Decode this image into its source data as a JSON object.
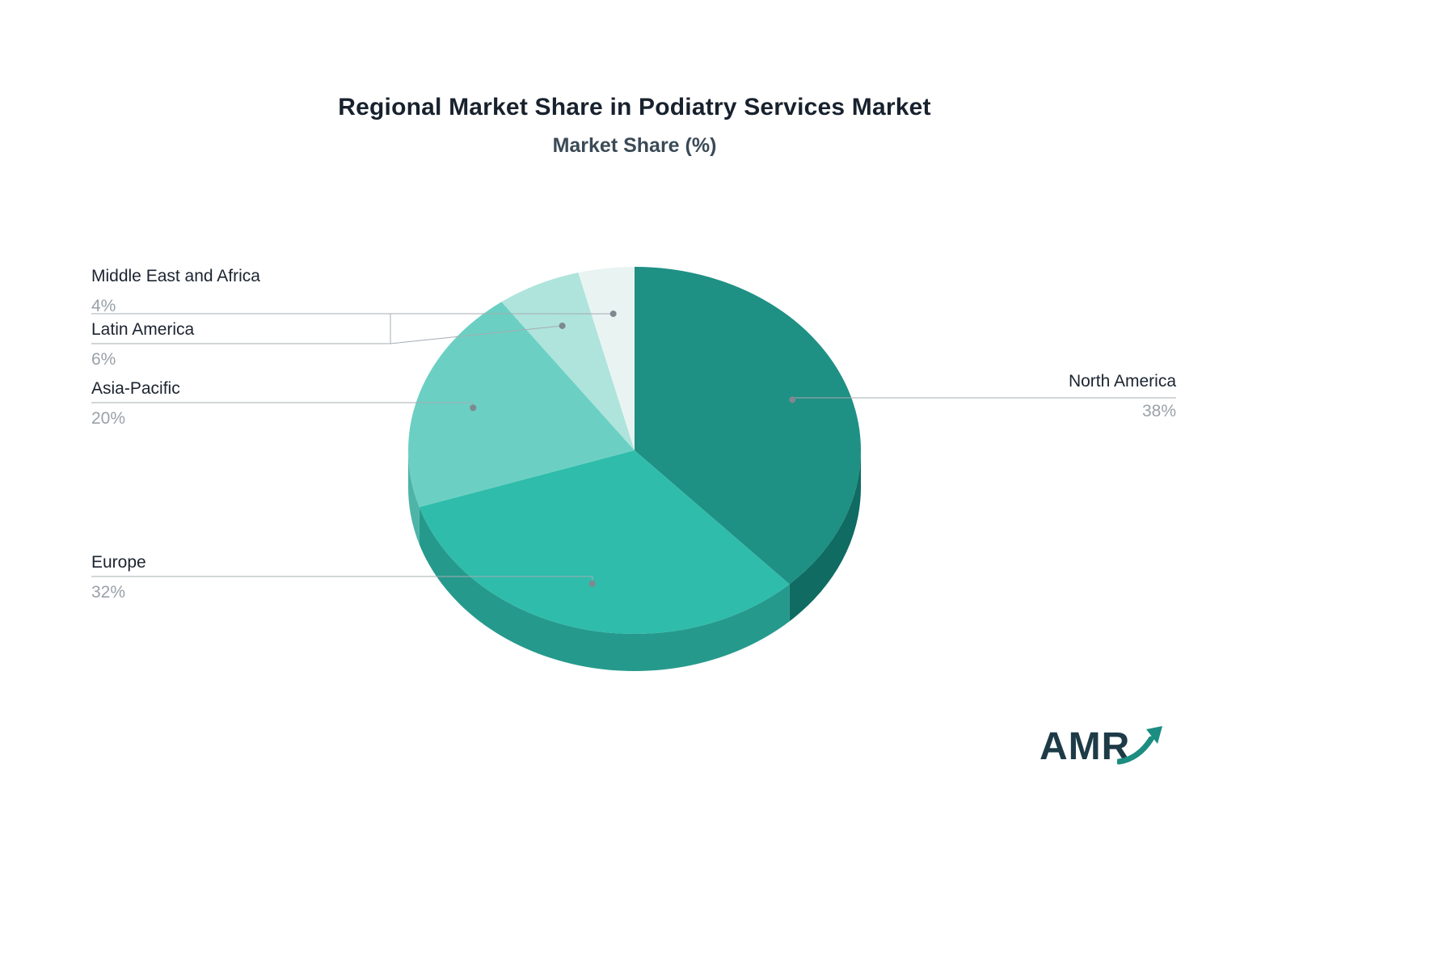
{
  "chart_data": {
    "type": "pie",
    "title": "Regional Market Share in Podiatry Services Market",
    "subtitle": "Market Share (%)",
    "unit": "%",
    "legend_position": "none",
    "label_style": "callout-leader-lines",
    "style_3d": true,
    "slices": [
      {
        "label": "North America",
        "value": 38,
        "value_label": "38%",
        "color": "#1f9084",
        "side_color": "#106b62",
        "label_side": "right"
      },
      {
        "label": "Europe",
        "value": 32,
        "value_label": "32%",
        "color": "#2fbcab",
        "side_color": "#259a8c",
        "label_side": "left"
      },
      {
        "label": "Asia-Pacific",
        "value": 20,
        "value_label": "20%",
        "color": "#6bd0c3",
        "side_color": "#4db4a7",
        "label_side": "left"
      },
      {
        "label": "Latin America",
        "value": 6,
        "value_label": "6%",
        "color": "#aee4dc",
        "side_color": "#8fcfc6",
        "label_side": "left"
      },
      {
        "label": "Middle East and Africa",
        "value": 4,
        "value_label": "4%",
        "color": "#e9f4f2",
        "side_color": "#cfe4e1",
        "label_side": "left"
      }
    ]
  },
  "logo": {
    "text": "AMR",
    "arrow_icon": "trend-up-arrow",
    "text_color": "#1d3b47",
    "accent": "#1b8d81"
  }
}
